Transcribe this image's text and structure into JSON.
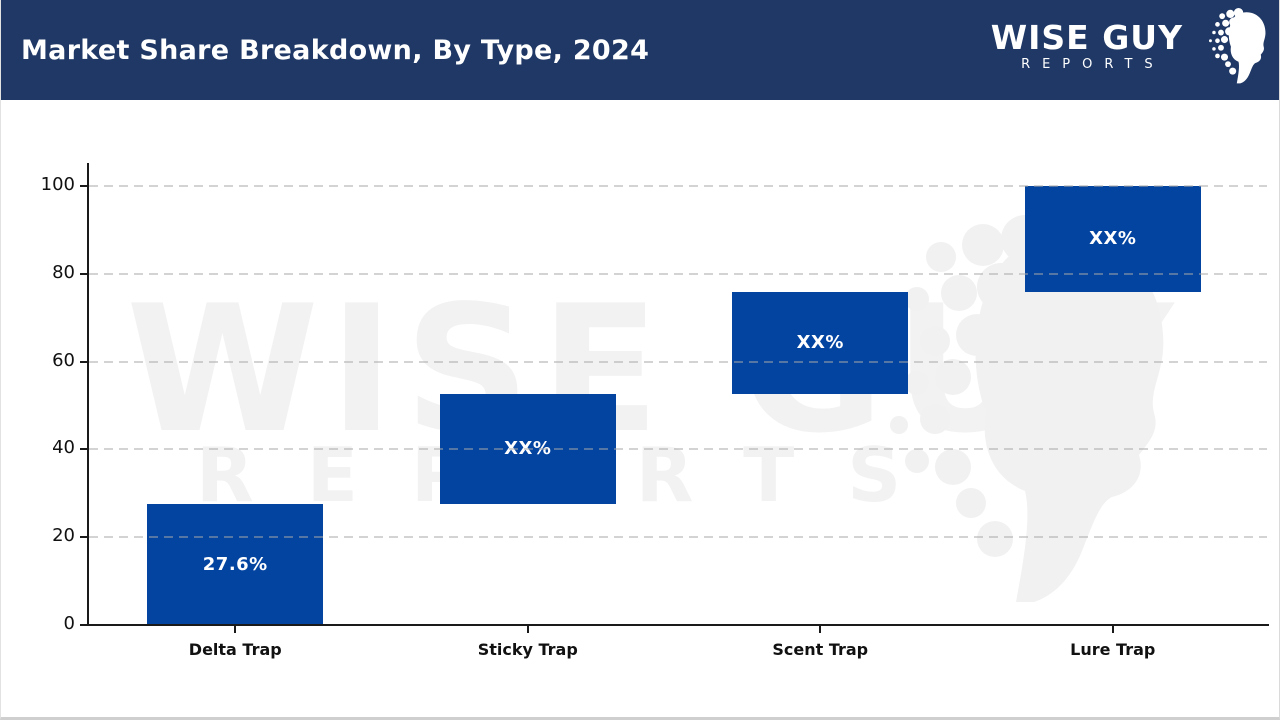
{
  "header": {
    "title": "Market Share Breakdown, By Type, 2024",
    "bg_color": "#1f3866",
    "logo": {
      "line1": "WISE GUY",
      "line2": "REPORTS"
    }
  },
  "watermark": {
    "line1": "WISE GUY",
    "line2": "REPORTS"
  },
  "chart_data": {
    "type": "bar",
    "subtype": "floating-waterfall",
    "title": "Market Share Breakdown, By Type, 2024",
    "xlabel": "",
    "ylabel": "",
    "categories": [
      "Delta Trap",
      "Sticky Trap",
      "Scent Trap",
      "Lure Trap"
    ],
    "segments": [
      {
        "category": "Delta Trap",
        "start": 0,
        "end": 27.6,
        "label": "27.6%"
      },
      {
        "category": "Sticky Trap",
        "start": 27.6,
        "end": 52.6,
        "label": "XX%"
      },
      {
        "category": "Scent Trap",
        "start": 52.6,
        "end": 75.9,
        "label": "XX%"
      },
      {
        "category": "Lure Trap",
        "start": 75.9,
        "end": 100,
        "label": "XX%"
      }
    ],
    "ylim": [
      0,
      100
    ],
    "yticks": [
      0,
      20,
      40,
      60,
      80,
      100
    ],
    "bar_color": "#0444a1",
    "grid": "dashed-horizontal",
    "legend": "none"
  }
}
